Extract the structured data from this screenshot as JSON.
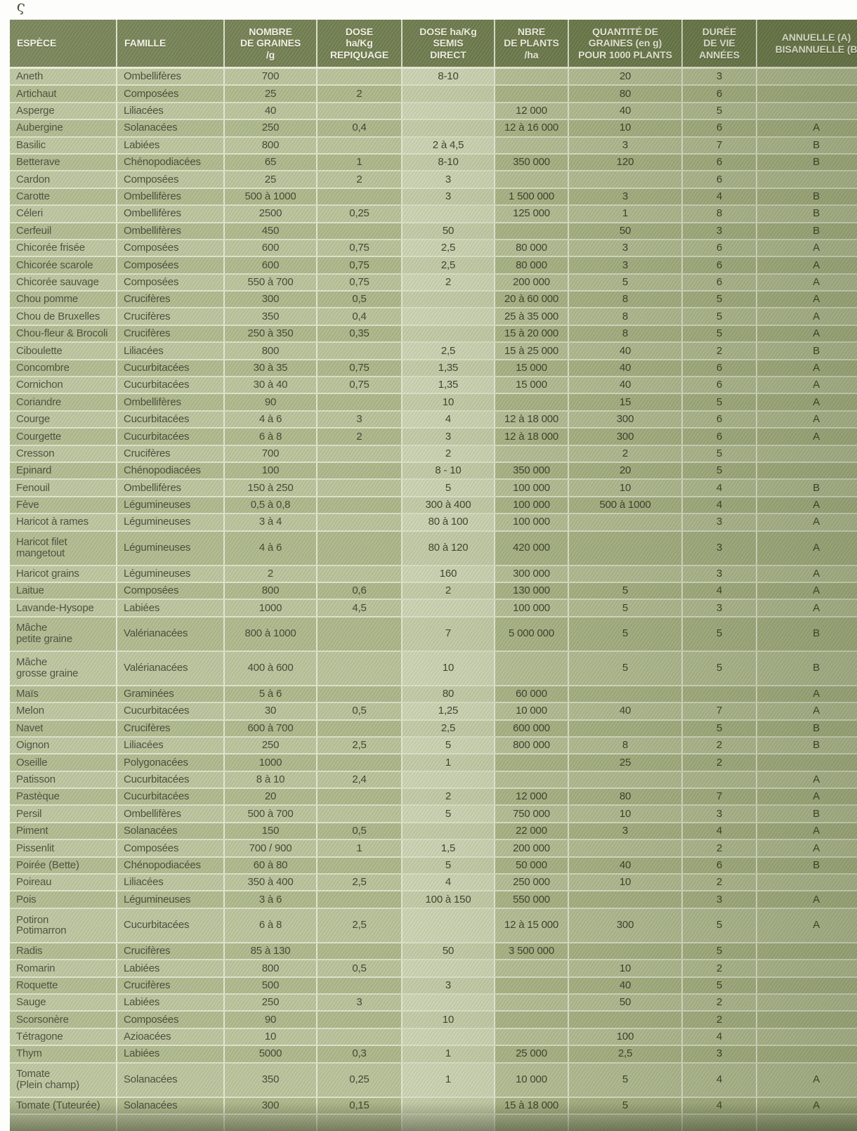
{
  "page": {
    "artifact_mark": "ς"
  },
  "colors": {
    "header_bg": "#6c794a",
    "header_text": "#f4f4e6",
    "row_light": "#b6c096",
    "row_dark": "#a9b485",
    "highlight_col": "#ccd3ad",
    "grid_line": "#e9ecd8",
    "body_text": "#373b28"
  },
  "table": {
    "header": {
      "columns": [
        {
          "id": "espece",
          "lines": [
            "ESPÈCE"
          ]
        },
        {
          "id": "famille",
          "lines": [
            "FAMILLE"
          ]
        },
        {
          "id": "nombre-de-graines-g",
          "lines": [
            "NOMBRE",
            "DE GRAINES",
            "/g"
          ]
        },
        {
          "id": "dose-ha-kg-repiquage",
          "lines": [
            "DOSE",
            "ha/Kg",
            "REPIQUAGE"
          ]
        },
        {
          "id": "dose-ha-kg-semis-direct",
          "lines": [
            "DOSE ha/Kg",
            "SEMIS",
            "DIRECT"
          ]
        },
        {
          "id": "nbre-de-plants-ha",
          "lines": [
            "NBRE",
            "DE PLANTS",
            "/ha"
          ]
        },
        {
          "id": "quantite-de-graines-pour-1000-plants",
          "lines": [
            "QUANTITÉ DE",
            "GRAINES (en g)",
            "POUR 1000 PLANTS"
          ]
        },
        {
          "id": "duree-de-vie-annees",
          "lines": [
            "DURÉE",
            "DE VIE",
            "ANNÉES"
          ]
        },
        {
          "id": "annuelle-bisannuelle",
          "lines": [
            "ANNUELLE (A)",
            "BISANNUELLE (B"
          ]
        }
      ]
    },
    "rows": [
      [
        "Aneth",
        "Ombellifères",
        "700",
        "",
        "8-10",
        "",
        "20",
        "3",
        ""
      ],
      [
        "Artichaut",
        "Composées",
        "25",
        "2",
        "",
        "",
        "80",
        "6",
        ""
      ],
      [
        "Asperge",
        "Liliacées",
        "40",
        "",
        "",
        "12 000",
        "40",
        "5",
        ""
      ],
      [
        "Aubergine",
        "Solanacées",
        "250",
        "0,4",
        "",
        "12 à 16 000",
        "10",
        "6",
        "A"
      ],
      [
        "Basilic",
        "Labiées",
        "800",
        "",
        "2 à 4,5",
        "",
        "3",
        "7",
        "B"
      ],
      [
        "Betterave",
        "Chénopodiacées",
        "65",
        "1",
        "8-10",
        "350 000",
        "120",
        "6",
        "B"
      ],
      [
        "Cardon",
        "Composées",
        "25",
        "2",
        "3",
        "",
        "",
        "6",
        ""
      ],
      [
        "Carotte",
        "Ombellifères",
        "500 à 1000",
        "",
        "3",
        "1 500 000",
        "3",
        "4",
        "B"
      ],
      [
        "Céleri",
        "Ombellifères",
        "2500",
        "0,25",
        "",
        "125 000",
        "1",
        "8",
        "B"
      ],
      [
        "Cerfeuil",
        "Ombellifères",
        "450",
        "",
        "50",
        "",
        "50",
        "3",
        "B"
      ],
      [
        "Chicorée frisée",
        "Composées",
        "600",
        "0,75",
        "2,5",
        "80 000",
        "3",
        "6",
        "A"
      ],
      [
        "Chicorée scarole",
        "Composées",
        "600",
        "0,75",
        "2,5",
        "80 000",
        "3",
        "6",
        "A"
      ],
      [
        "Chicorée sauvage",
        "Composées",
        "550 à 700",
        "0,75",
        "2",
        "200 000",
        "5",
        "6",
        "A"
      ],
      [
        "Chou pomme",
        "Crucifères",
        "300",
        "0,5",
        "",
        "20 à 60 000",
        "8",
        "5",
        "A"
      ],
      [
        "Chou de Bruxelles",
        "Crucifères",
        "350",
        "0,4",
        "",
        "25 à 35 000",
        "8",
        "5",
        "A"
      ],
      [
        "Chou-fleur & Brocoli",
        "Crucifères",
        "250 à 350",
        "0,35",
        "",
        "15 à 20 000",
        "8",
        "5",
        "A"
      ],
      [
        "Ciboulette",
        "Liliacées",
        "800",
        "",
        "2,5",
        "15 à 25 000",
        "40",
        "2",
        "B"
      ],
      [
        "Concombre",
        "Cucurbitacées",
        "30 à 35",
        "0,75",
        "1,35",
        "15 000",
        "40",
        "6",
        "A"
      ],
      [
        "Cornichon",
        "Cucurbitacées",
        "30 à 40",
        "0,75",
        "1,35",
        "15 000",
        "40",
        "6",
        "A"
      ],
      [
        "Coriandre",
        "Ombellifères",
        "90",
        "",
        "10",
        "",
        "15",
        "5",
        "A"
      ],
      [
        "Courge",
        "Cucurbitacées",
        "4 à 6",
        "3",
        "4",
        "12 à 18 000",
        "300",
        "6",
        "A"
      ],
      [
        "Courgette",
        "Cucurbitacées",
        "6 à 8",
        "2",
        "3",
        "12 à 18 000",
        "300",
        "6",
        "A"
      ],
      [
        "Cresson",
        "Crucifères",
        "700",
        "",
        "2",
        "",
        "2",
        "5",
        ""
      ],
      [
        "Epinard",
        "Chénopodiacées",
        "100",
        "",
        "8 - 10",
        "350 000",
        "20",
        "5",
        ""
      ],
      [
        "Fenouil",
        "Ombellifères",
        "150 à 250",
        "",
        "5",
        "100 000",
        "10",
        "4",
        "B"
      ],
      [
        "Fève",
        "Légumineuses",
        "0,5 à 0,8",
        "",
        "300 à 400",
        "100 000",
        "500 à 1000",
        "4",
        "A"
      ],
      [
        "Haricot à rames",
        "Légumineuses",
        "3 à 4",
        "",
        "80 à 100",
        "100 000",
        "",
        "3",
        "A"
      ],
      [
        "Haricot filet\nmangetout",
        "Légumineuses",
        "4 à 6",
        "",
        "80 à 120",
        "420 000",
        "",
        "3",
        "A"
      ],
      [
        "Haricot grains",
        "Légumineuses",
        "2",
        "",
        "160",
        "300 000",
        "",
        "3",
        "A"
      ],
      [
        "Laitue",
        "Composées",
        "800",
        "0,6",
        "2",
        "130 000",
        "5",
        "4",
        "A"
      ],
      [
        "Lavande-Hysope",
        "Labiées",
        "1000",
        "4,5",
        "",
        "100 000",
        "5",
        "3",
        "A"
      ],
      [
        "Mâche\npetite graine",
        "Valérianacées",
        "800 à 1000",
        "",
        "7",
        "5 000 000",
        "5",
        "5",
        "B"
      ],
      [
        "Mâche\ngrosse graine",
        "Valérianacées",
        "400 à 600",
        "",
        "10",
        "",
        "5",
        "5",
        "B"
      ],
      [
        "Maïs",
        "Graminées",
        "5 à 6",
        "",
        "80",
        "60 000",
        "",
        "",
        "A"
      ],
      [
        "Melon",
        "Cucurbitacées",
        "30",
        "0,5",
        "1,25",
        "10 000",
        "40",
        "7",
        "A"
      ],
      [
        "Navet",
        "Crucifères",
        "600 à 700",
        "",
        "2,5",
        "600 000",
        "",
        "5",
        "B"
      ],
      [
        "Oignon",
        "Liliacées",
        "250",
        "2,5",
        "5",
        "800 000",
        "8",
        "2",
        "B"
      ],
      [
        "Oseille",
        "Polygonacées",
        "1000",
        "",
        "1",
        "",
        "25",
        "2",
        ""
      ],
      [
        "Patisson",
        "Cucurbitacées",
        "8 à 10",
        "2,4",
        "",
        "",
        "",
        "",
        "A"
      ],
      [
        "Pastèque",
        "Cucurbitacées",
        "20",
        "",
        "2",
        "12 000",
        "80",
        "7",
        "A"
      ],
      [
        "Persil",
        "Ombellifères",
        "500 à 700",
        "",
        "5",
        "750 000",
        "10",
        "3",
        "B"
      ],
      [
        "Piment",
        "Solanacées",
        "150",
        "0,5",
        "",
        "22 000",
        "3",
        "4",
        "A"
      ],
      [
        "Pissenlit",
        "Composées",
        "700 / 900",
        "1",
        "1,5",
        "200 000",
        "",
        "2",
        "A"
      ],
      [
        "Poirée (Bette)",
        "Chénopodiacées",
        "60 à 80",
        "",
        "5",
        "50 000",
        "40",
        "6",
        "B"
      ],
      [
        "Poireau",
        "Liliacées",
        "350 à 400",
        "2,5",
        "4",
        "250 000",
        "10",
        "2",
        ""
      ],
      [
        "Pois",
        "Légumineuses",
        "3 à 6",
        "",
        "100 à 150",
        "550 000",
        "",
        "3",
        "A"
      ],
      [
        "Potiron\nPotimarron",
        "Cucurbitacées",
        "6 à 8",
        "2,5",
        "",
        "12 à 15 000",
        "300",
        "5",
        "A"
      ],
      [
        "Radis",
        "Crucifères",
        "85 à 130",
        "",
        "50",
        "3 500 000",
        "",
        "5",
        ""
      ],
      [
        "Romarin",
        "Labiées",
        "800",
        "0,5",
        "",
        "",
        "10",
        "2",
        ""
      ],
      [
        "Roquette",
        "Crucifères",
        "500",
        "",
        "3",
        "",
        "40",
        "5",
        ""
      ],
      [
        "Sauge",
        "Labiées",
        "250",
        "3",
        "",
        "",
        "50",
        "2",
        ""
      ],
      [
        "Scorsonère",
        "Composées",
        "90",
        "",
        "10",
        "",
        "",
        "2",
        ""
      ],
      [
        "Tétragone",
        "Azioacées",
        "10",
        "",
        "",
        "",
        "100",
        "4",
        ""
      ],
      [
        "Thym",
        "Labiées",
        "5000",
        "0,3",
        "1",
        "25 000",
        "2,5",
        "3",
        ""
      ],
      [
        "Tomate\n(Plein champ)",
        "Solanacées",
        "350",
        "0,25",
        "1",
        "10 000",
        "5",
        "4",
        "A"
      ],
      [
        "Tomate (Tuteurée)",
        "Solanacées",
        "300",
        "0,15",
        "",
        "15 à 18 000",
        "5",
        "4",
        "A"
      ]
    ]
  }
}
